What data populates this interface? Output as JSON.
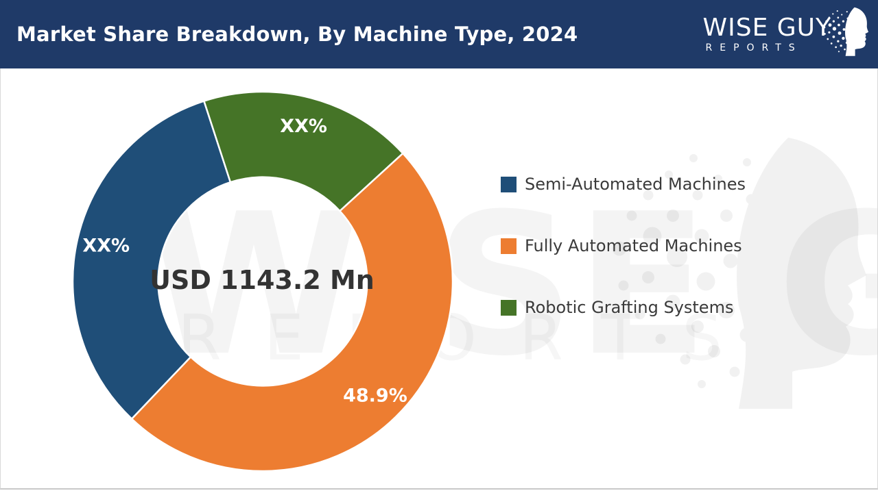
{
  "header": {
    "title": "Market Share Breakdown, By Machine Type, 2024",
    "logo": {
      "line1": "WISE GUY",
      "line2": "REPORTS"
    }
  },
  "watermark": {
    "line1": "WISE GUY",
    "line2": "REPORTS"
  },
  "chart_data": {
    "type": "pie",
    "subtype": "donut",
    "title": "Market Share Breakdown, By Machine Type, 2024",
    "center_label": "USD 1143.2 Mn",
    "donut_hole_ratio": 0.55,
    "rotation_deg_conic": 342,
    "direction": "counterclockwise",
    "legend_position": "right",
    "label_radius_ratio": 0.845,
    "segments": [
      {
        "name": "Semi-Automated Machines",
        "value_pct": 32.9,
        "label": "XX%",
        "color": "#1F4E78"
      },
      {
        "name": "Fully Automated Machines",
        "value_pct": 48.9,
        "label": "48.9%",
        "color": "#ED7D31"
      },
      {
        "name": "Robotic Grafting Systems",
        "value_pct": 18.2,
        "label": "XX%",
        "color": "#457427"
      }
    ]
  },
  "colors": {
    "header_bg": "#1F3A68",
    "center_text": "#333333",
    "legend_text": "#3a3a3a",
    "border": "#c9c9c9"
  }
}
